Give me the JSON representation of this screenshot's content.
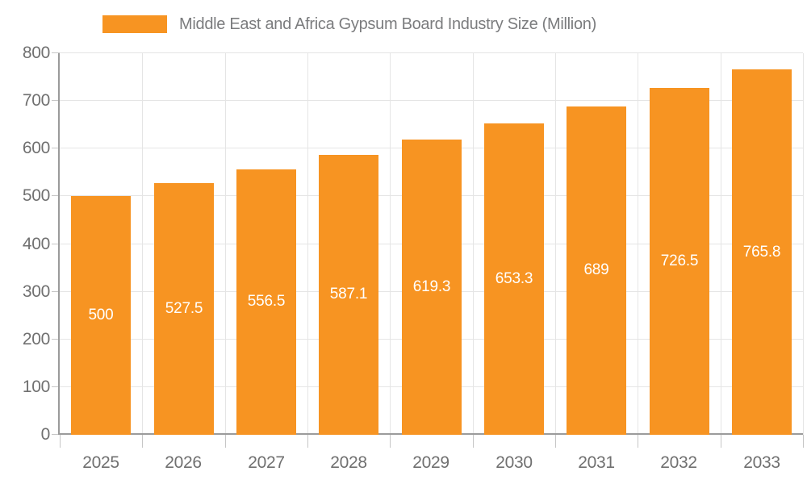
{
  "chart_data": {
    "type": "bar",
    "title": "Middle East and Africa Gypsum Board Industry Size (Million)",
    "legend": {
      "position": "top",
      "label": "Middle East and Africa Gypsum Board Industry Size (Million)"
    },
    "categories": [
      "2025",
      "2026",
      "2027",
      "2028",
      "2029",
      "2030",
      "2031",
      "2032",
      "2033"
    ],
    "series": [
      {
        "name": "Middle East and Africa Gypsum Board Industry Size (Million)",
        "values": [
          500,
          527.5,
          556.5,
          587.1,
          619.3,
          653.3,
          689,
          726.5,
          765.8
        ],
        "value_labels": [
          "500",
          "527.5",
          "556.5",
          "587.1",
          "619.3",
          "653.3",
          "689",
          "726.5",
          "765.8"
        ]
      }
    ],
    "xlabel": "",
    "ylabel": "",
    "ylim": [
      0,
      800
    ],
    "yticks": [
      0,
      100,
      200,
      300,
      400,
      500,
      600,
      700,
      800
    ],
    "grid": true,
    "colors": {
      "bar": "#F79422",
      "axis": "#9B9B9B",
      "gridline": "#E5E5E5",
      "tick": "#C6C6C6",
      "tick_label": "#707070",
      "legend_text": "#7B7C7E",
      "value_label": "#FFFFFF",
      "background": "#FFFFFF"
    }
  }
}
